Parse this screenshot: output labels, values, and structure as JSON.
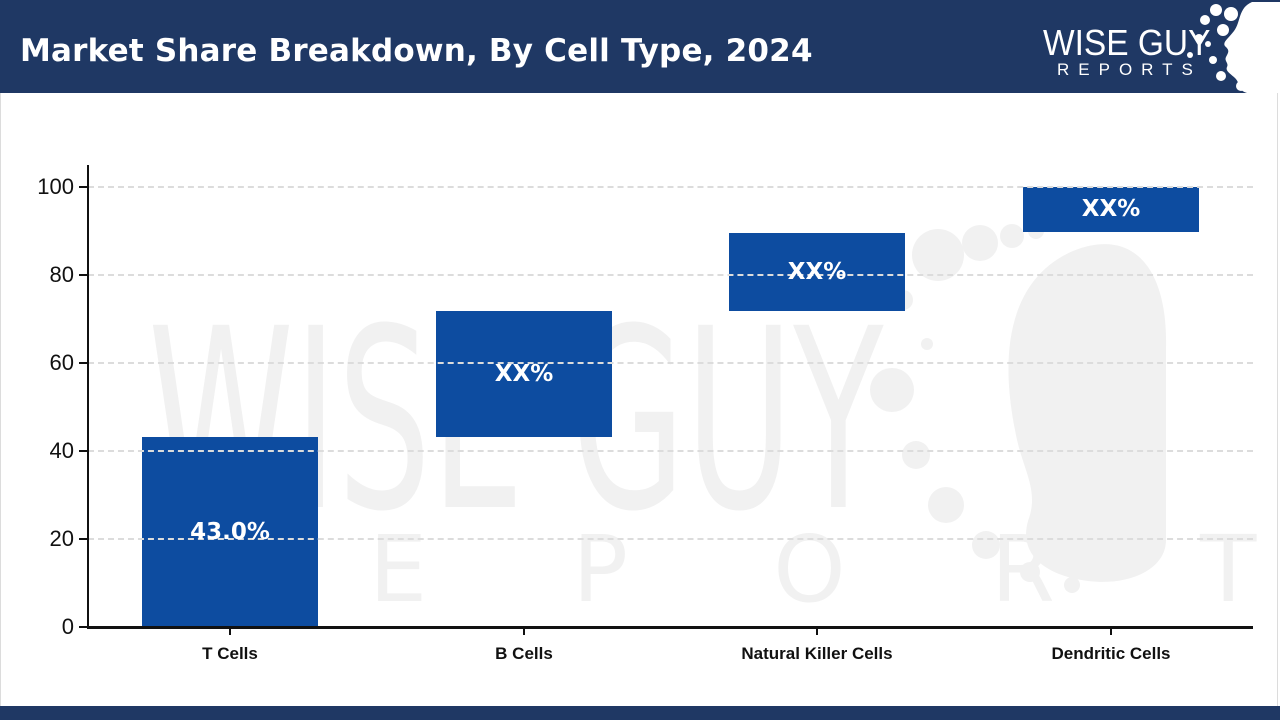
{
  "header": {
    "title": "Market Share Breakdown, By Cell Type, 2024",
    "logo_line1": "WISE GUY",
    "logo_line2": "REPORTS",
    "bg_color": "#1F3864"
  },
  "watermark": {
    "line1": "WISE GUY",
    "line2": "R E P O R T S"
  },
  "chart_data": {
    "type": "bar",
    "subtype": "waterfall",
    "title": "Market Share Breakdown, By Cell Type, 2024",
    "categories": [
      "T Cells",
      "B Cells",
      "Natural Killer Cells",
      "Dendritic Cells"
    ],
    "series": [
      {
        "name": "Market Share",
        "segments": [
          {
            "category": "T Cells",
            "start": 0.0,
            "end": 43.0,
            "value_label": "43.0%"
          },
          {
            "category": "B Cells",
            "start": 43.0,
            "end": 71.6,
            "value_label": "XX%"
          },
          {
            "category": "Natural Killer Cells",
            "start": 71.7,
            "end": 89.5,
            "value_label": "XX%"
          },
          {
            "category": "Dendritic Cells",
            "start": 89.7,
            "end": 100.0,
            "value_label": "XX%"
          }
        ]
      }
    ],
    "ylim": [
      0,
      105
    ],
    "yticks": [
      0,
      20,
      40,
      60,
      80,
      100
    ],
    "ytick_labels": [
      "0",
      "20",
      "40",
      "60",
      "80",
      "100"
    ],
    "grid": {
      "axis": "y",
      "style": "dashed",
      "drawn_above_bars": true
    },
    "legend": "none",
    "bar_color": "#0d4ca0",
    "value_label_color": "#ffffff"
  },
  "colors": {
    "header_bg": "#1F3864",
    "footer_bg": "#1F3864",
    "bar": "#0d4ca0",
    "gridline": "#dcdcdc",
    "axis": "#111111",
    "watermark": "#f1f1f1"
  }
}
